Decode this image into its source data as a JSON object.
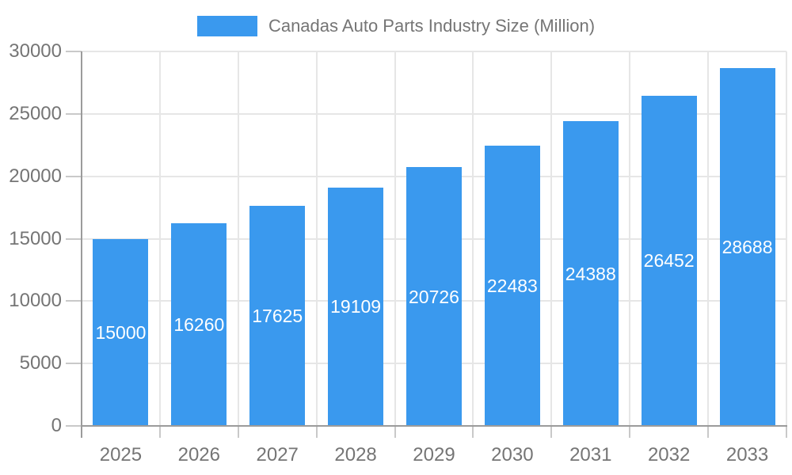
{
  "chart_data": {
    "type": "bar",
    "legend": "Canadas Auto Parts Industry Size (Million)",
    "legend_position": "top",
    "categories": [
      "2025",
      "2026",
      "2027",
      "2028",
      "2029",
      "2030",
      "2031",
      "2032",
      "2033"
    ],
    "values": [
      15000,
      16260,
      17625,
      19109,
      20726,
      22483,
      24388,
      26452,
      28688
    ],
    "value_labels_inside_bars": true,
    "xlabel": "",
    "ylabel": "",
    "ylim": [
      0,
      30000
    ],
    "y_ticks": [
      0,
      5000,
      10000,
      15000,
      20000,
      25000,
      30000
    ],
    "grid": true,
    "colors": {
      "bar": "#3A99EE",
      "grid": "#E6E6E6",
      "tick": "#C9C9C9",
      "axis": "#9B9B9B",
      "text": "#757575",
      "value_label": "#FFFFFF",
      "background": "#FFFFFF"
    }
  }
}
